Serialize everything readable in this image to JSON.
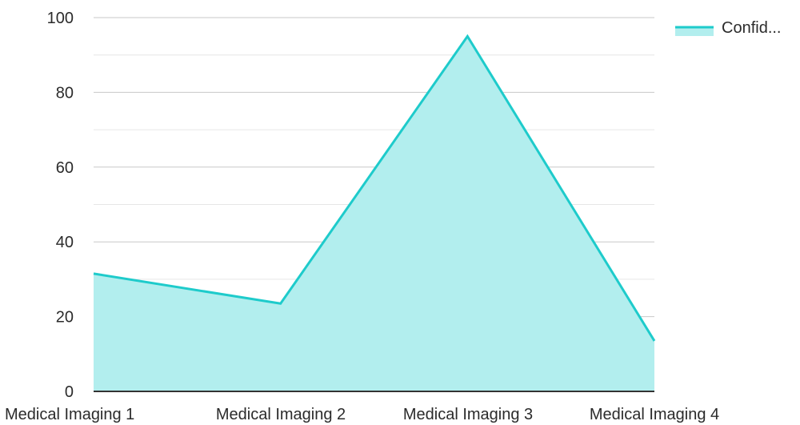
{
  "chart_data": {
    "type": "area",
    "categories": [
      "Medical Imaging 1",
      "Medical Imaging 2",
      "Medical Imaging 3",
      "Medical Imaging 4"
    ],
    "series": [
      {
        "name": "Confid...",
        "values": [
          31.5,
          23.5,
          95,
          13.5
        ]
      }
    ],
    "ylim": [
      0,
      100
    ],
    "yticks": [
      "0",
      "20",
      "40",
      "60",
      "80",
      "100"
    ],
    "grid": true,
    "legend_position": "top-right",
    "colors": {
      "line": "#1ECBCB",
      "fill": "#B2EEEE",
      "grid_major": "#c8c8c8",
      "grid_minor": "#e6e6e6",
      "axis": "#333333"
    }
  }
}
